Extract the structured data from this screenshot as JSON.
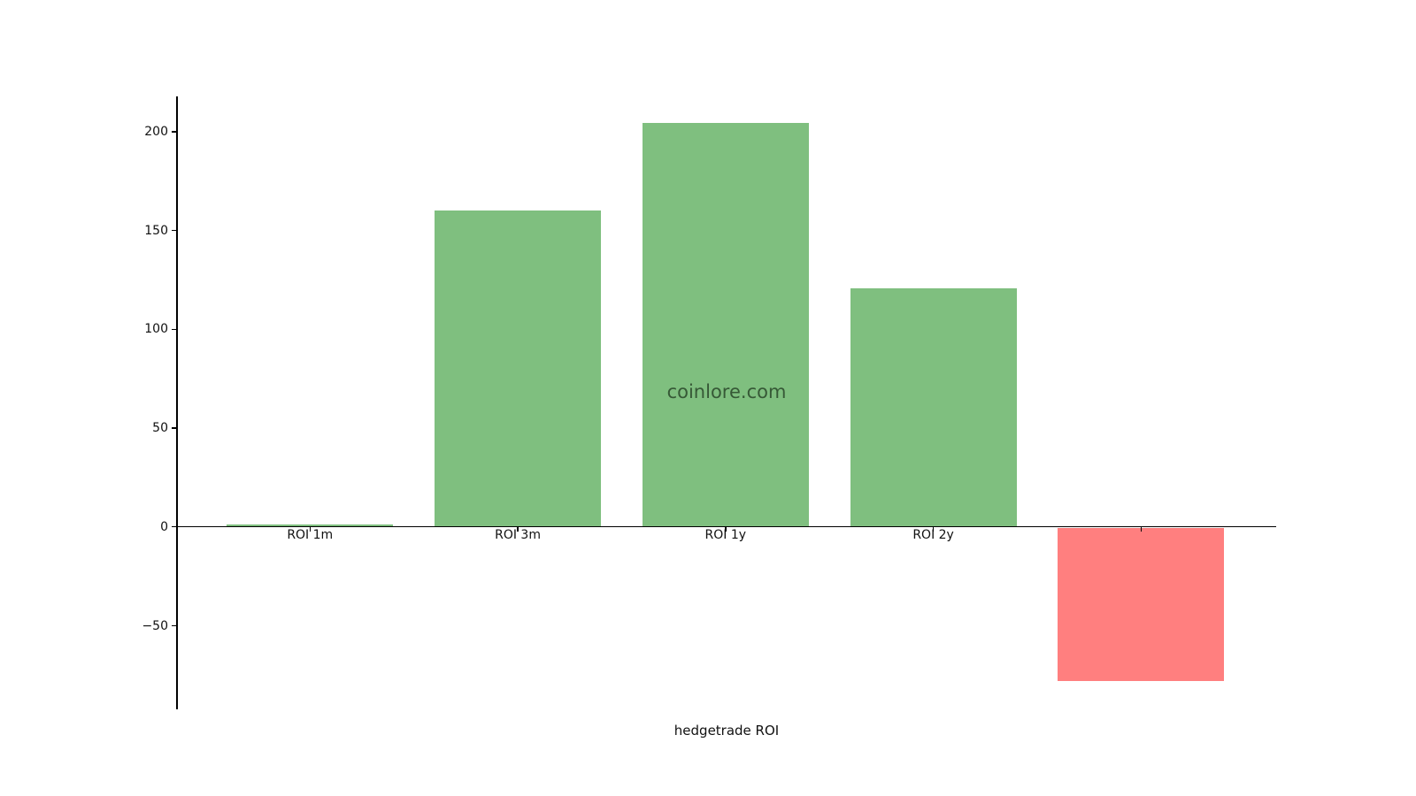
{
  "chart_data": {
    "type": "bar",
    "title": "hedgetrade ROI",
    "watermark": "coinlore.com",
    "categories": [
      "ROI 1m",
      "ROI 3m",
      "ROI 1y",
      "ROI 2y",
      ""
    ],
    "values": [
      1.3,
      160.2,
      204.3,
      120.7,
      -77.5
    ],
    "positive_color": "#7fbf7f",
    "negative_color": "#ff7f7f",
    "axis_color": "#000000",
    "text_color": "#111111",
    "yticks": [
      -50,
      0,
      50,
      100,
      150,
      200
    ],
    "ylim": [
      -92.3,
      217.9
    ],
    "xlim": [
      -0.64,
      4.65
    ],
    "bar_width": 0.8,
    "grid": false,
    "legend_position": "none",
    "xlabel": "hedgetrade ROI",
    "ylabel": ""
  }
}
